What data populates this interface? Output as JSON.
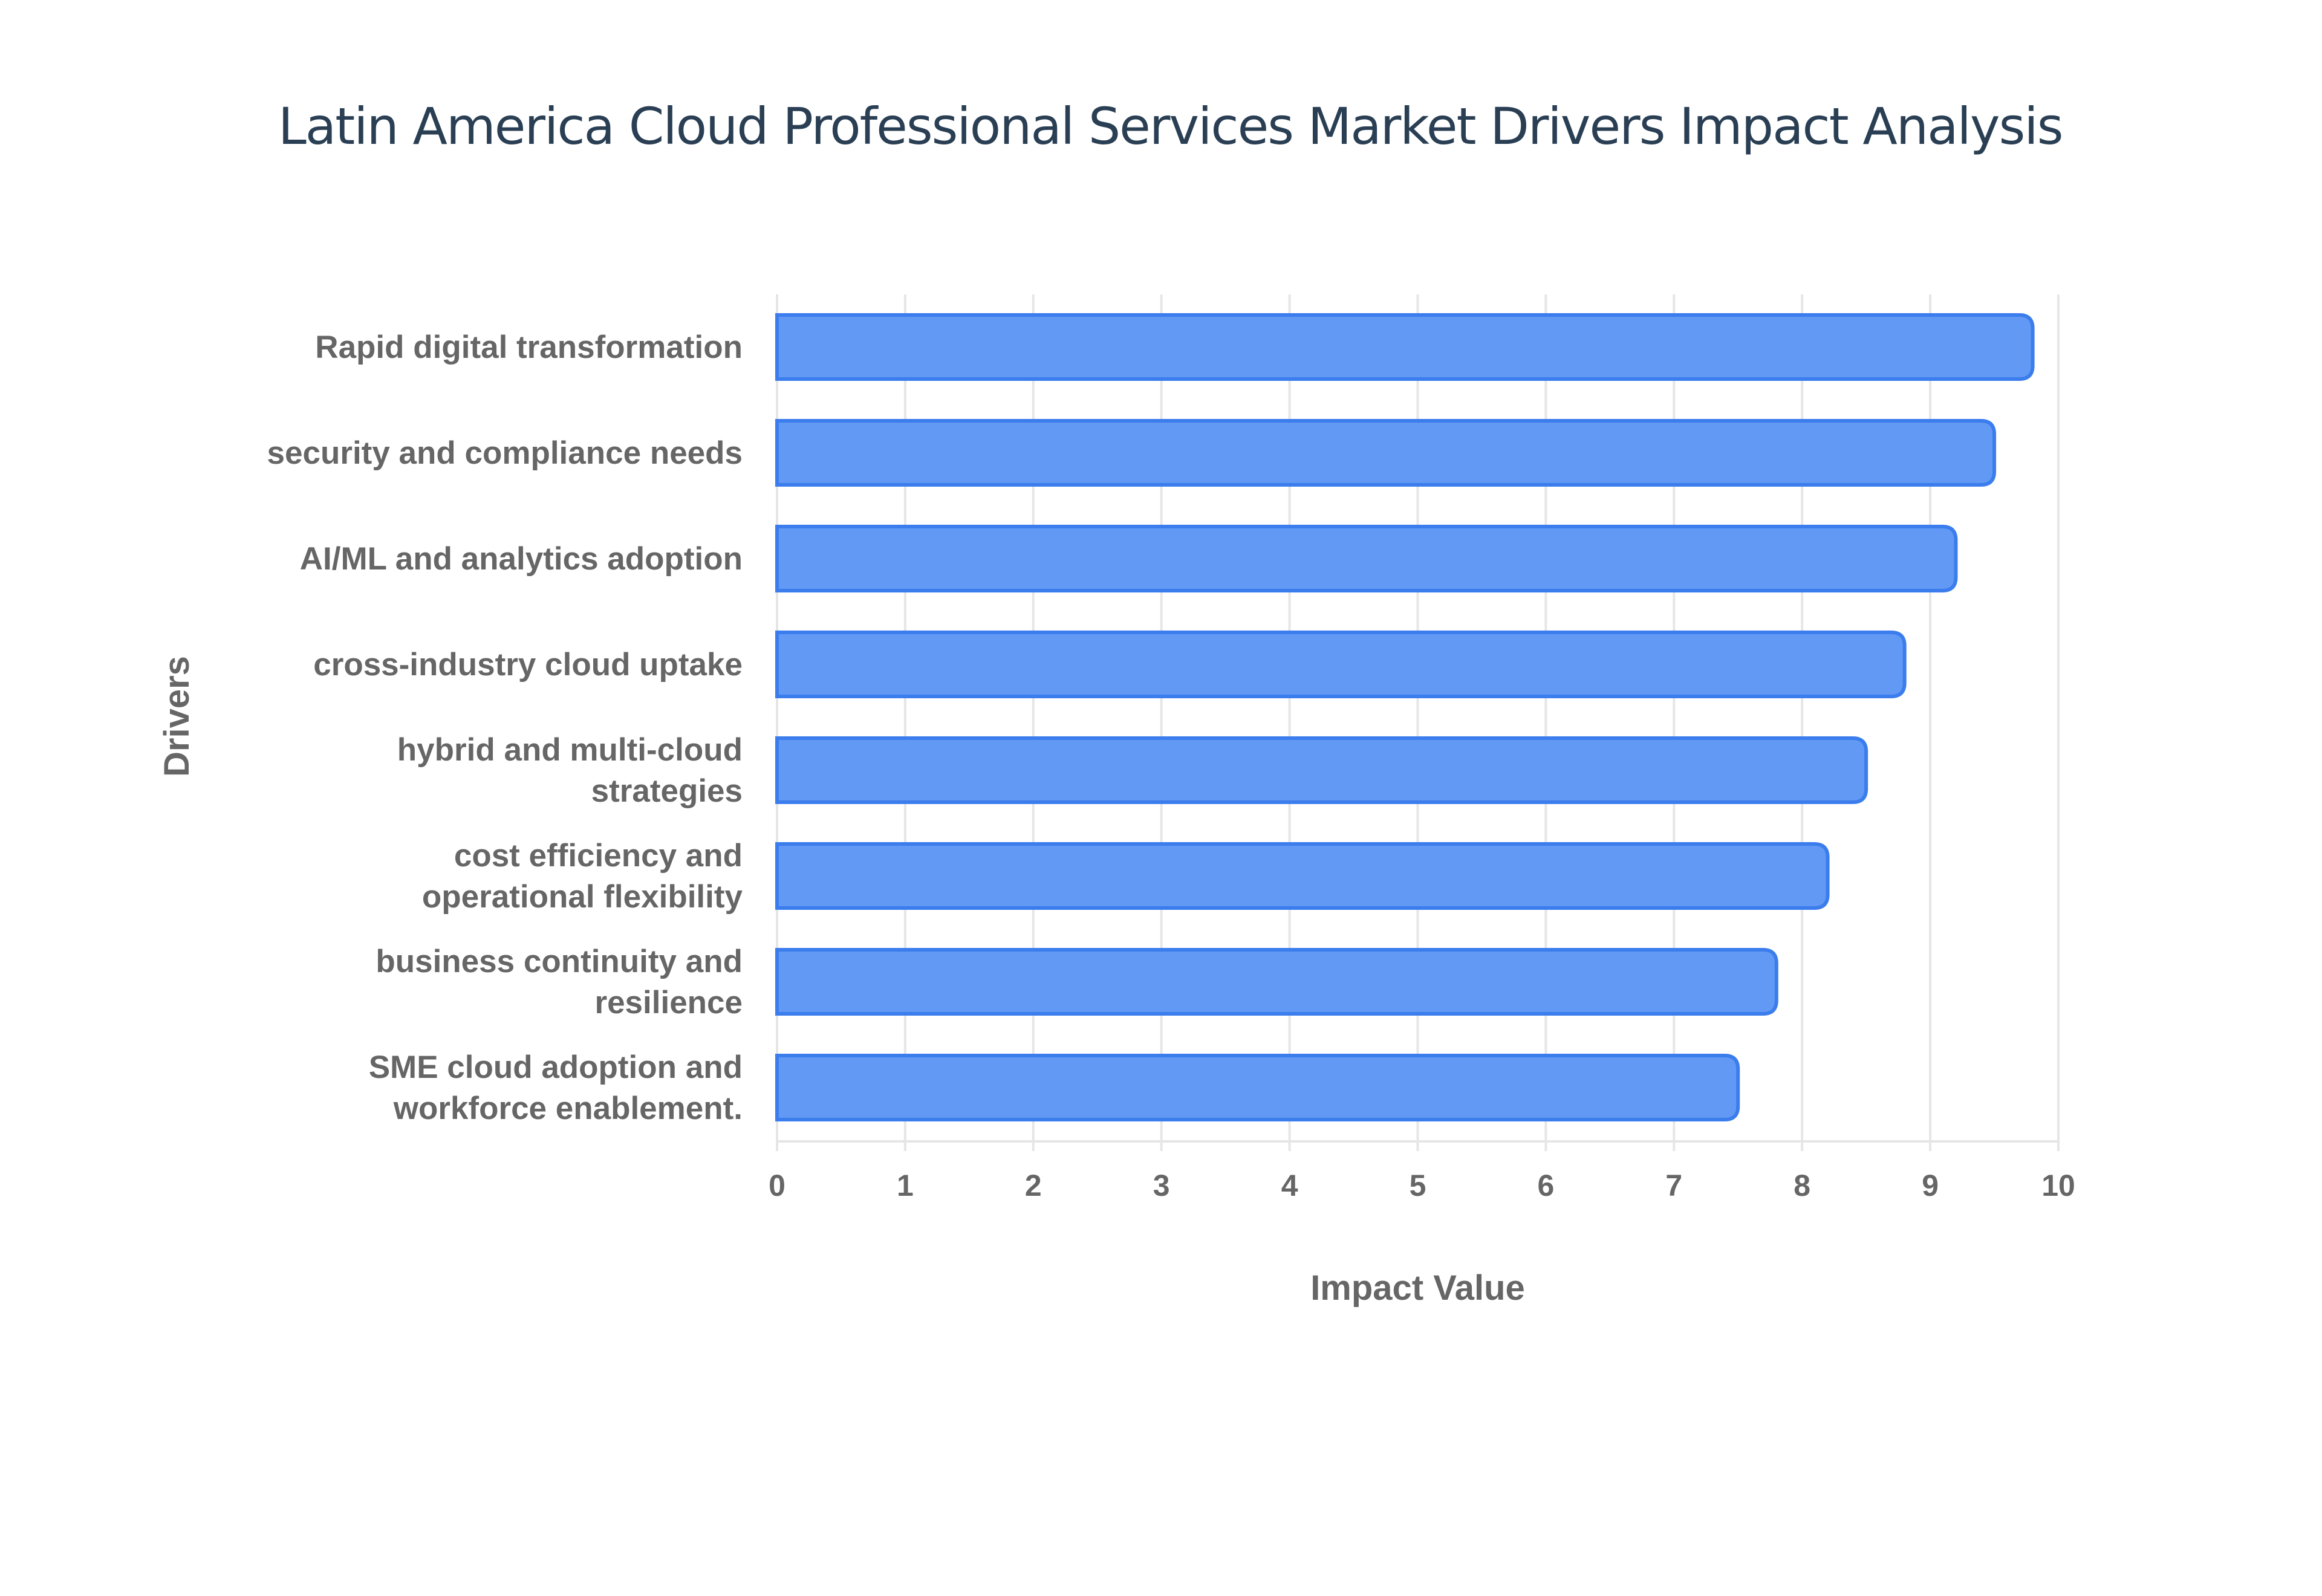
{
  "chart_data": {
    "type": "bar",
    "orientation": "horizontal",
    "title": "Latin America Cloud Professional Services Market Drivers Impact Analysis",
    "xlabel": "Impact Value",
    "ylabel": "Drivers",
    "xlim": [
      0,
      10
    ],
    "xticks": [
      "0",
      "1",
      "2",
      "3",
      "4",
      "5",
      "6",
      "7",
      "8",
      "9",
      "10"
    ],
    "grid": true,
    "bar_color": "#6199f4",
    "bar_edge_color": "#3b7ded",
    "categories": [
      [
        "Rapid digital transformation"
      ],
      [
        "security and compliance needs"
      ],
      [
        "AI/ML and analytics adoption"
      ],
      [
        "cross-industry cloud uptake"
      ],
      [
        "hybrid and multi-cloud",
        "strategies"
      ],
      [
        "cost efficiency and",
        "operational flexibility"
      ],
      [
        "business continuity and",
        "resilience"
      ],
      [
        "SME cloud adoption and",
        "workforce enablement."
      ]
    ],
    "values": [
      9.8,
      9.5,
      9.2,
      8.8,
      8.5,
      8.2,
      7.8,
      7.5
    ]
  }
}
